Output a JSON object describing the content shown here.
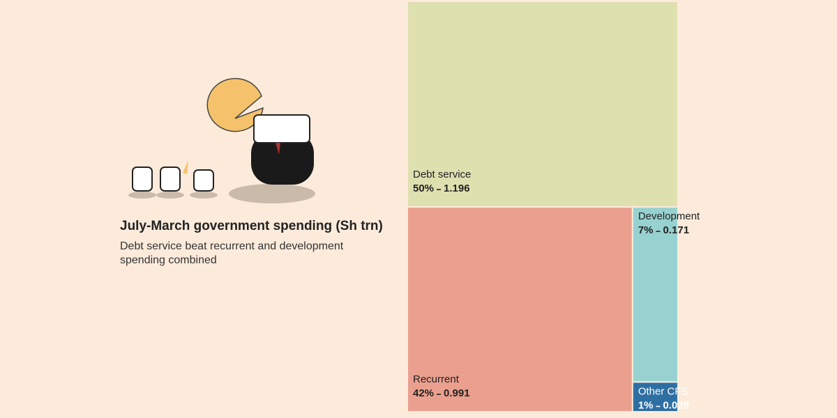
{
  "chart_data": {
    "type": "treemap",
    "title": "July-March government spending (Sh trn)",
    "subtitle": [
      "Debt service beat recurrent and development",
      "spending combined"
    ],
    "categories": [
      "Debt service",
      "Recurrent",
      "Development",
      "Other CFS"
    ],
    "values": [
      1.196,
      0.991,
      0.171,
      0.029
    ],
    "share_labels": [
      "50%",
      "42%",
      "7%",
      "1%"
    ],
    "colors": [
      "#dfe0b0",
      "#eba08f",
      "#98d2d0",
      "#2e6fa3"
    ]
  }
}
